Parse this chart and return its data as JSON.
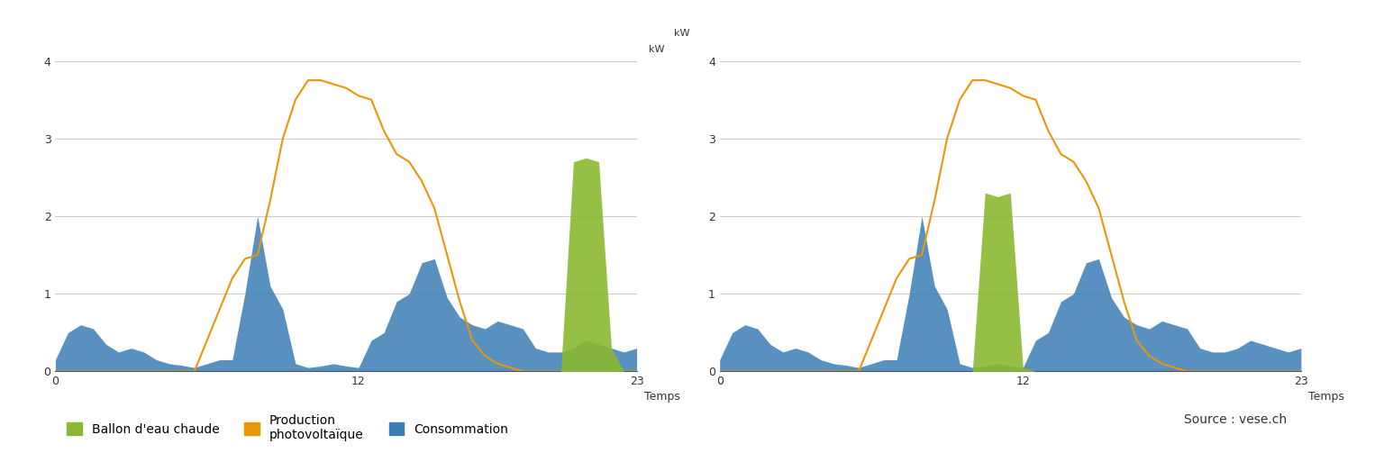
{
  "background_color": "#ffffff",
  "ylim": [
    0,
    4.2
  ],
  "xlim": [
    0,
    23
  ],
  "yticks": [
    0,
    1,
    2,
    3,
    4
  ],
  "xticks": [
    0,
    12,
    23
  ],
  "color_orange": "#E8960A",
  "color_blue": "#3B7DB5",
  "color_green": "#8BB832",
  "ylabel": "kW",
  "xlabel": "Temps",
  "source_text": "Source : vese.ch",
  "legend_labels": [
    "Ballon d'eau chaude",
    "Production\nphotovoltaïque",
    "Consommation"
  ],
  "chart1_title": "",
  "chart2_title": "",
  "production_x": [
    0,
    5.5,
    6.5,
    7.0,
    7.5,
    8.0,
    8.5,
    9.0,
    9.5,
    10.0,
    10.5,
    11.0,
    11.5,
    12.0,
    12.5,
    13.0,
    13.5,
    14.0,
    14.5,
    15.0,
    15.5,
    16.0,
    16.5,
    17.0,
    17.5,
    18.0,
    18.5,
    19.0,
    19.5,
    20.0,
    23
  ],
  "production_y": [
    0,
    0,
    0.8,
    1.2,
    1.45,
    1.5,
    2.2,
    3.0,
    3.5,
    3.75,
    3.75,
    3.7,
    3.65,
    3.55,
    3.5,
    3.1,
    2.8,
    2.7,
    2.45,
    2.1,
    1.5,
    0.9,
    0.4,
    0.2,
    0.1,
    0.05,
    0.0,
    0,
    0,
    0,
    0
  ],
  "consumption_x": [
    0,
    0.5,
    1.0,
    1.5,
    2.0,
    2.5,
    3.0,
    3.5,
    4.0,
    4.5,
    5.0,
    5.5,
    6.0,
    6.5,
    7.0,
    7.5,
    8.0,
    8.5,
    9.0,
    9.5,
    10.0,
    10.5,
    11.0,
    11.5,
    12.0,
    12.5,
    13.0,
    13.5,
    14.0,
    14.5,
    15.0,
    15.5,
    16.0,
    16.5,
    17.0,
    17.5,
    18.0,
    18.5,
    19.0,
    19.5,
    20.0,
    20.5,
    21.0,
    21.5,
    22.0,
    22.5,
    23
  ],
  "consumption_y": [
    0.15,
    0.5,
    0.6,
    0.55,
    0.35,
    0.25,
    0.3,
    0.25,
    0.15,
    0.1,
    0.08,
    0.05,
    0.1,
    0.15,
    0.15,
    1.0,
    2.0,
    1.1,
    0.8,
    0.1,
    0.05,
    0.07,
    0.1,
    0.07,
    0.05,
    0.4,
    0.5,
    0.9,
    1.0,
    1.4,
    1.45,
    0.95,
    0.7,
    0.6,
    0.55,
    0.65,
    0.6,
    0.55,
    0.3,
    0.25,
    0.25,
    0.3,
    0.4,
    0.35,
    0.3,
    0.25,
    0.3
  ],
  "chart1_ballon_x": [
    19.5,
    20.0,
    20.5,
    21.0,
    21.5,
    22.0,
    22.5,
    23.0
  ],
  "chart1_ballon_y": [
    0,
    0,
    2.7,
    2.75,
    2.7,
    0.3,
    0,
    0
  ],
  "chart2_ballon_x": [
    10.0,
    10.5,
    11.0,
    11.5,
    12.0,
    12.5
  ],
  "chart2_ballon_y": [
    0,
    2.3,
    2.25,
    2.3,
    0.05,
    0
  ],
  "chart2_consumption_x": [
    0,
    0.5,
    1.0,
    1.5,
    2.0,
    2.5,
    3.0,
    3.5,
    4.0,
    4.5,
    5.0,
    5.5,
    6.0,
    6.5,
    7.0,
    7.5,
    8.0,
    8.5,
    9.0,
    9.5,
    10.0,
    10.5,
    11.0,
    11.5,
    12.0,
    12.5,
    13.0,
    13.5,
    14.0,
    14.5,
    15.0,
    15.5,
    16.0,
    16.5,
    17.0,
    17.5,
    18.0,
    18.5,
    19.0,
    19.5,
    20.0,
    20.5,
    21.0,
    21.5,
    22.0,
    22.5,
    23
  ],
  "chart2_consumption_y": [
    0.15,
    0.5,
    0.6,
    0.55,
    0.35,
    0.25,
    0.3,
    0.25,
    0.15,
    0.1,
    0.08,
    0.05,
    0.1,
    0.15,
    0.15,
    1.0,
    2.0,
    1.1,
    0.8,
    0.1,
    0.05,
    0.07,
    0.1,
    0.07,
    0.05,
    0.4,
    0.5,
    0.9,
    1.0,
    1.4,
    1.45,
    0.95,
    0.7,
    0.6,
    0.55,
    0.65,
    0.6,
    0.55,
    0.3,
    0.25,
    0.25,
    0.3,
    0.4,
    0.35,
    0.3,
    0.25,
    0.3
  ]
}
